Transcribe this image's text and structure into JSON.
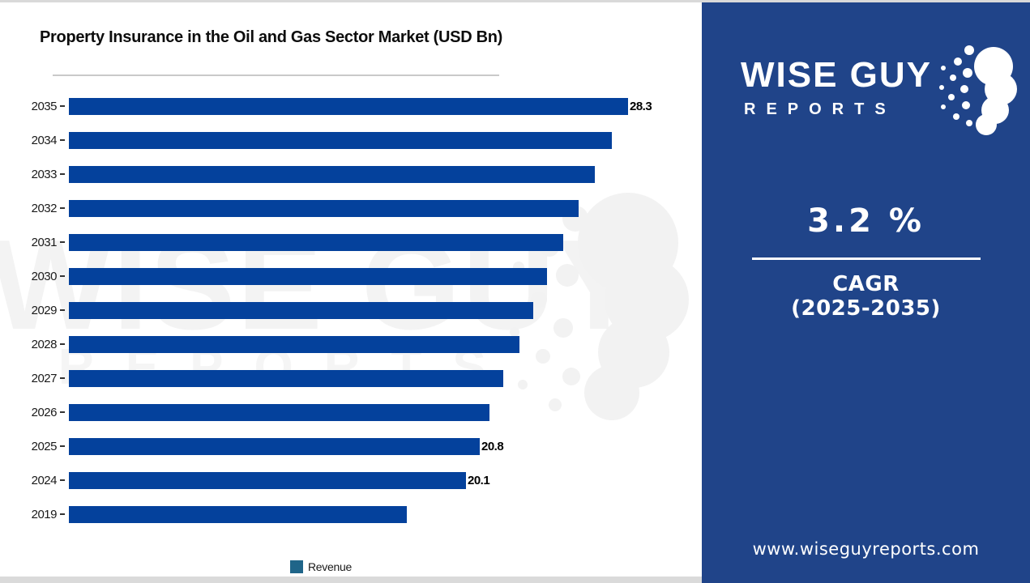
{
  "chart": {
    "title": "Property Insurance in the Oil and Gas Sector Market (USD Bn)",
    "bar_color": "#04419c",
    "legend_label": "Revenue",
    "legend_color": "#1f6589"
  },
  "chart_data": {
    "type": "bar",
    "orientation": "horizontal",
    "title": "Property Insurance in the Oil and Gas Sector Market (USD Bn)",
    "units": "USD Bn",
    "categories": [
      "2035",
      "2034",
      "2033",
      "2032",
      "2031",
      "2030",
      "2029",
      "2028",
      "2027",
      "2026",
      "2025",
      "2024",
      "2019"
    ],
    "values": [
      28.3,
      27.5,
      26.6,
      25.8,
      25.0,
      24.2,
      23.5,
      22.8,
      22.0,
      21.3,
      20.8,
      20.1,
      17.1
    ],
    "value_labels": [
      "28.3",
      "",
      "",
      "",
      "",
      "",
      "",
      "",
      "",
      "",
      "20.8",
      "20.1",
      ""
    ],
    "xlabel": "",
    "ylabel": "",
    "xlim": [
      0,
      30
    ],
    "grid": false,
    "legend": [
      "Revenue"
    ],
    "legend_position": "bottom",
    "bar_color": "#04419c"
  },
  "sidebar": {
    "background": "#204489",
    "brand_line1": "WISE GUY",
    "brand_line2": "REPORTS",
    "cagr_value": "3.2 %",
    "cagr_line1": "CAGR",
    "cagr_line2": "(2025-2035)",
    "website": "www.wiseguyreports.com"
  },
  "watermark": {
    "line1": "WISE GUY",
    "line2": "REPORTS"
  }
}
